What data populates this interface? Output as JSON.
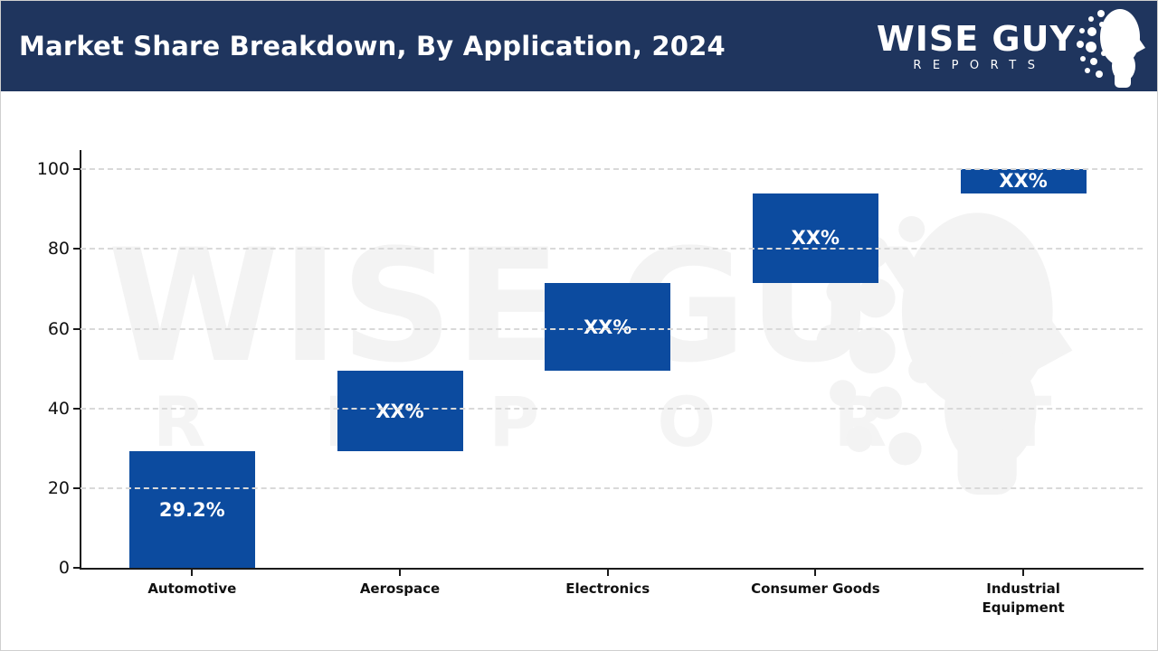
{
  "header": {
    "title": "Market Share Breakdown, By Application, 2024",
    "bg_color": "#1f355e",
    "logo": {
      "line1": "WISE GUY",
      "line2": "REPORTS"
    }
  },
  "watermark": {
    "line1": "WISE GUY",
    "line2": "R E P O R T S"
  },
  "chart_data": {
    "type": "bar",
    "subtype": "waterfall",
    "title": "Market Share Breakdown, By Application, 2024",
    "categories": [
      "Automotive",
      "Aerospace",
      "Electronics",
      "Consumer Goods",
      "Industrial Equipment"
    ],
    "segments": [
      {
        "category": "Automotive",
        "start": 0,
        "end": 29.2,
        "label": "29.2%"
      },
      {
        "category": "Aerospace",
        "start": 29.2,
        "end": 49.4,
        "label": "XX%"
      },
      {
        "category": "Electronics",
        "start": 49.4,
        "end": 71.5,
        "label": "XX%"
      },
      {
        "category": "Consumer Goods",
        "start": 71.5,
        "end": 94.0,
        "label": "XX%"
      },
      {
        "category": "Industrial Equipment",
        "start": 94.0,
        "end": 100.0,
        "label": "XX%"
      }
    ],
    "y_ticks": [
      0,
      20,
      40,
      60,
      80,
      100
    ],
    "ylim": [
      0,
      105
    ],
    "xlabel": "",
    "ylabel": "",
    "grid": true,
    "legend": false,
    "bar_color": "#0c4b9f",
    "label_color": "#ffffff"
  }
}
